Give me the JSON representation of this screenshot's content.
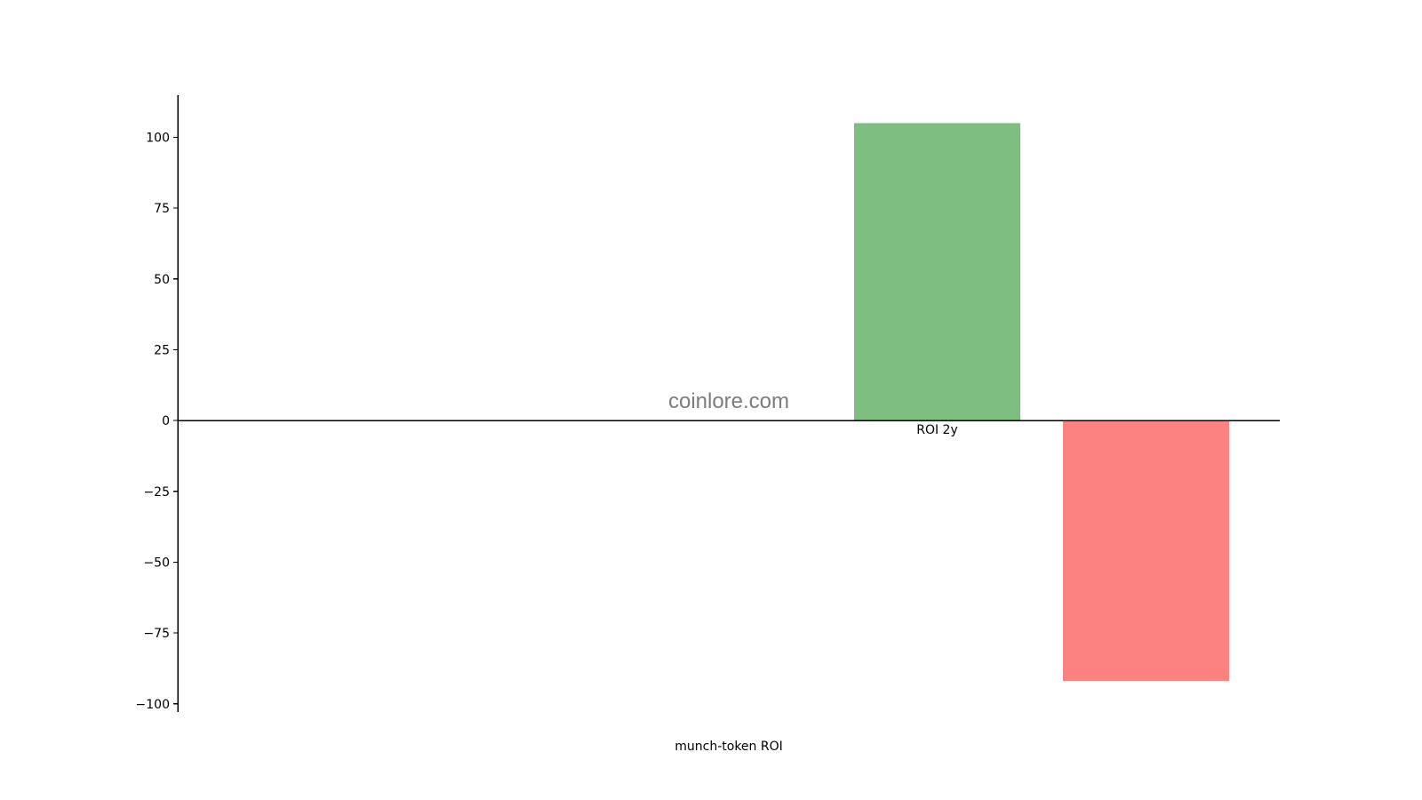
{
  "watermark": {
    "text": "coinlore.com",
    "color": "#7d7d7d"
  },
  "chart_data": {
    "type": "bar",
    "title": "",
    "categories": [
      "ROI 2y",
      ""
    ],
    "values": [
      105,
      -92
    ],
    "bar_colors": [
      "#7ebe80",
      "#fc8181"
    ],
    "xlabel": "munch-token ROI",
    "ylabel": "",
    "ylim": [
      -102.9,
      114.9
    ],
    "yticks": [
      100,
      75,
      50,
      25,
      0,
      -25,
      -50,
      -75,
      -100
    ],
    "ytick_labels": [
      "100",
      "75",
      "50",
      "25",
      "0",
      "−25",
      "−50",
      "−75",
      "−100"
    ],
    "grid": false,
    "legend_position": "none",
    "zero_line": true,
    "axis_color": "#000000"
  }
}
